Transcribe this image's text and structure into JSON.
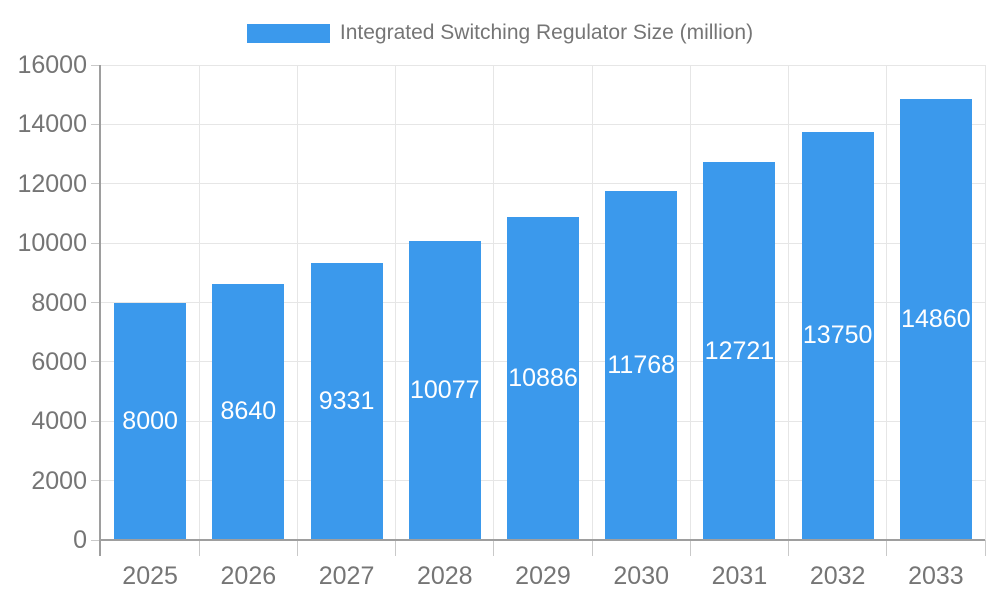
{
  "chart_data": {
    "type": "bar",
    "title": "",
    "legend": {
      "label": "Integrated Switching Regulator Size (million)",
      "position": "top"
    },
    "categories": [
      "2025",
      "2026",
      "2027",
      "2028",
      "2029",
      "2030",
      "2031",
      "2032",
      "2033"
    ],
    "series": [
      {
        "name": "Integrated Switching Regulator Size (million)",
        "values": [
          8000,
          8640,
          9331,
          10077,
          10886,
          11768,
          12721,
          13750,
          14860
        ]
      }
    ],
    "xlabel": "",
    "ylabel": "",
    "ylim": [
      0,
      16000
    ],
    "ytick_step": 2000,
    "yticks": [
      0,
      2000,
      4000,
      6000,
      8000,
      10000,
      12000,
      14000,
      16000
    ],
    "grid": true,
    "bar_value_labels": true,
    "bar_label_position": "inside-center"
  },
  "colors": {
    "bar": "#3B99EC",
    "bar_label_text": "#FFFFFF",
    "axis_text": "#757575",
    "legend_text": "#757575",
    "gridline": "#E6E6E6",
    "tick": "#C9C9C9",
    "axis_line": "#9E9E9E",
    "background": "#FFFFFF"
  }
}
